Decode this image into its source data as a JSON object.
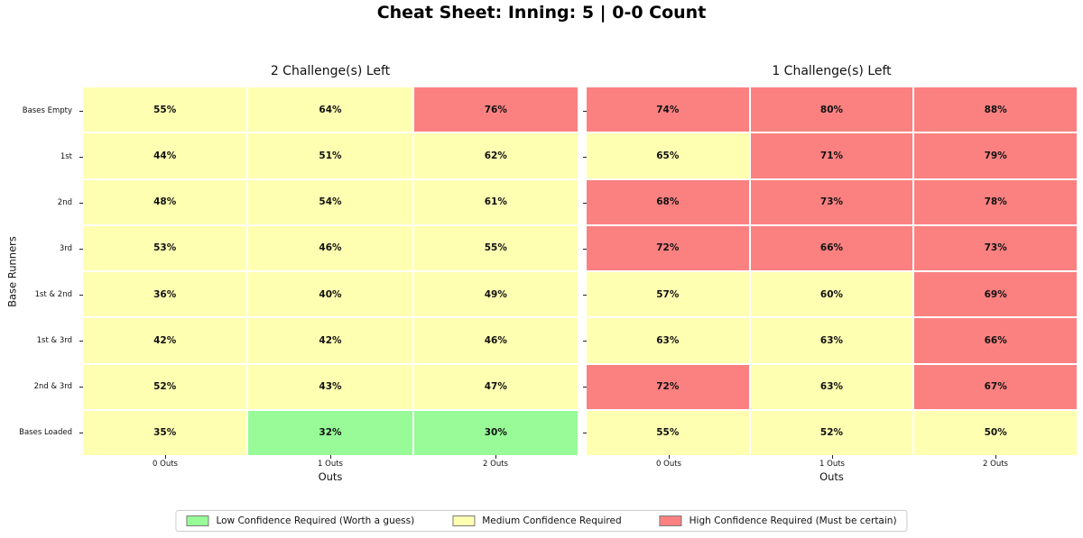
{
  "title": "Cheat Sheet: Inning: 5 | 0-0 Count",
  "colors": {
    "low": "#98FB98",
    "medium": "#FFFFB2",
    "high": "#FB8181"
  },
  "legend": [
    {
      "level": "low",
      "label": "Low Confidence Required (Worth a guess)"
    },
    {
      "level": "medium",
      "label": "Medium Confidence Required"
    },
    {
      "level": "high",
      "label": "High Confidence Required (Must be certain)"
    }
  ],
  "chart_data": {
    "type": "heatmap",
    "title": "Cheat Sheet: Inning: 5 | 0-0 Count",
    "xlabel": "Outs",
    "ylabel": "Base Runners",
    "categories_x": [
      "0 Outs",
      "1 Outs",
      "2 Outs"
    ],
    "categories_y": [
      "Bases Empty",
      "1st",
      "2nd",
      "3rd",
      "1st & 2nd",
      "1st & 3rd",
      "2nd & 3rd",
      "Bases Loaded"
    ],
    "value_unit": "%",
    "legend_position": "bottom",
    "panels": [
      {
        "title": "2 Challenge(s) Left",
        "values": [
          [
            55,
            64,
            76
          ],
          [
            44,
            51,
            62
          ],
          [
            48,
            54,
            61
          ],
          [
            53,
            46,
            55
          ],
          [
            36,
            40,
            49
          ],
          [
            42,
            42,
            46
          ],
          [
            52,
            43,
            47
          ],
          [
            35,
            32,
            30
          ]
        ],
        "levels": [
          [
            "medium",
            "medium",
            "high"
          ],
          [
            "medium",
            "medium",
            "medium"
          ],
          [
            "medium",
            "medium",
            "medium"
          ],
          [
            "medium",
            "medium",
            "medium"
          ],
          [
            "medium",
            "medium",
            "medium"
          ],
          [
            "medium",
            "medium",
            "medium"
          ],
          [
            "medium",
            "medium",
            "medium"
          ],
          [
            "medium",
            "low",
            "low"
          ]
        ]
      },
      {
        "title": "1 Challenge(s) Left",
        "values": [
          [
            74,
            80,
            88
          ],
          [
            65,
            71,
            79
          ],
          [
            68,
            73,
            78
          ],
          [
            72,
            66,
            73
          ],
          [
            57,
            60,
            69
          ],
          [
            63,
            63,
            66
          ],
          [
            72,
            63,
            67
          ],
          [
            55,
            52,
            50
          ]
        ],
        "levels": [
          [
            "high",
            "high",
            "high"
          ],
          [
            "medium",
            "high",
            "high"
          ],
          [
            "high",
            "high",
            "high"
          ],
          [
            "high",
            "high",
            "high"
          ],
          [
            "medium",
            "medium",
            "high"
          ],
          [
            "medium",
            "medium",
            "high"
          ],
          [
            "high",
            "medium",
            "high"
          ],
          [
            "medium",
            "medium",
            "medium"
          ]
        ]
      }
    ]
  }
}
